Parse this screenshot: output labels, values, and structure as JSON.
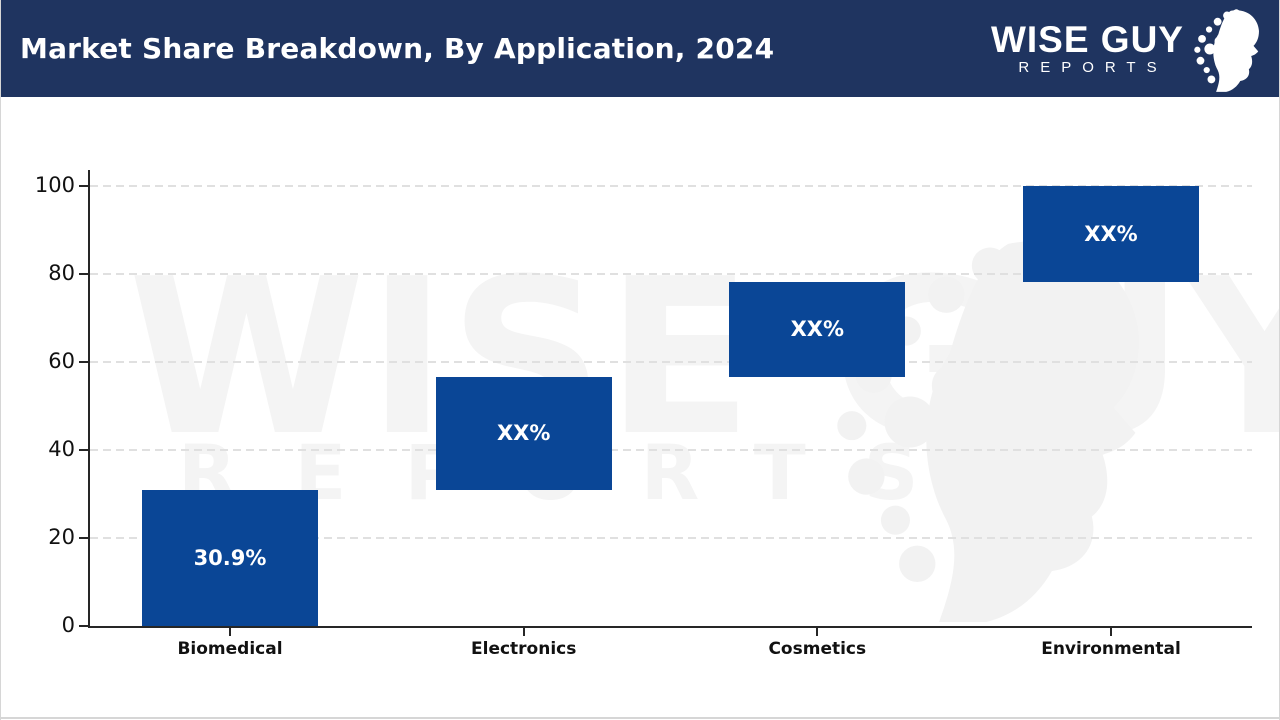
{
  "header": {
    "title": "Market Share Breakdown, By Application, 2024",
    "logo": {
      "line1": "WISE GUY",
      "line2": "REPORTS"
    }
  },
  "watermark": {
    "line1": "WISE GUY",
    "line2": "REPORTS"
  },
  "chart_data": {
    "type": "bar",
    "subtype": "waterfall",
    "title": "Market Share Breakdown, By Application, 2024",
    "categories": [
      "Biomedical",
      "Electronics",
      "Cosmetics",
      "Environmental"
    ],
    "segments": [
      {
        "category": "Biomedical",
        "start": 0,
        "end": 30.9,
        "label": "30.9%"
      },
      {
        "category": "Electronics",
        "start": 30.9,
        "end": 56.6,
        "label": "XX%"
      },
      {
        "category": "Cosmetics",
        "start": 56.6,
        "end": 78.2,
        "label": "XX%"
      },
      {
        "category": "Environmental",
        "start": 78.2,
        "end": 100,
        "label": "XX%"
      }
    ],
    "yticks": [
      0,
      20,
      40,
      60,
      80,
      100
    ],
    "ylim": [
      0,
      104
    ],
    "xlabel": "",
    "ylabel": "",
    "grid": "horizontal-dashed",
    "legend": "none"
  },
  "colors": {
    "header_bg": "#1f3460",
    "bar": "#0a4696",
    "bar_label": "#ffffff",
    "grid": "#e0e0e0",
    "axis": "#262626",
    "watermark": "#f4f4f4"
  }
}
